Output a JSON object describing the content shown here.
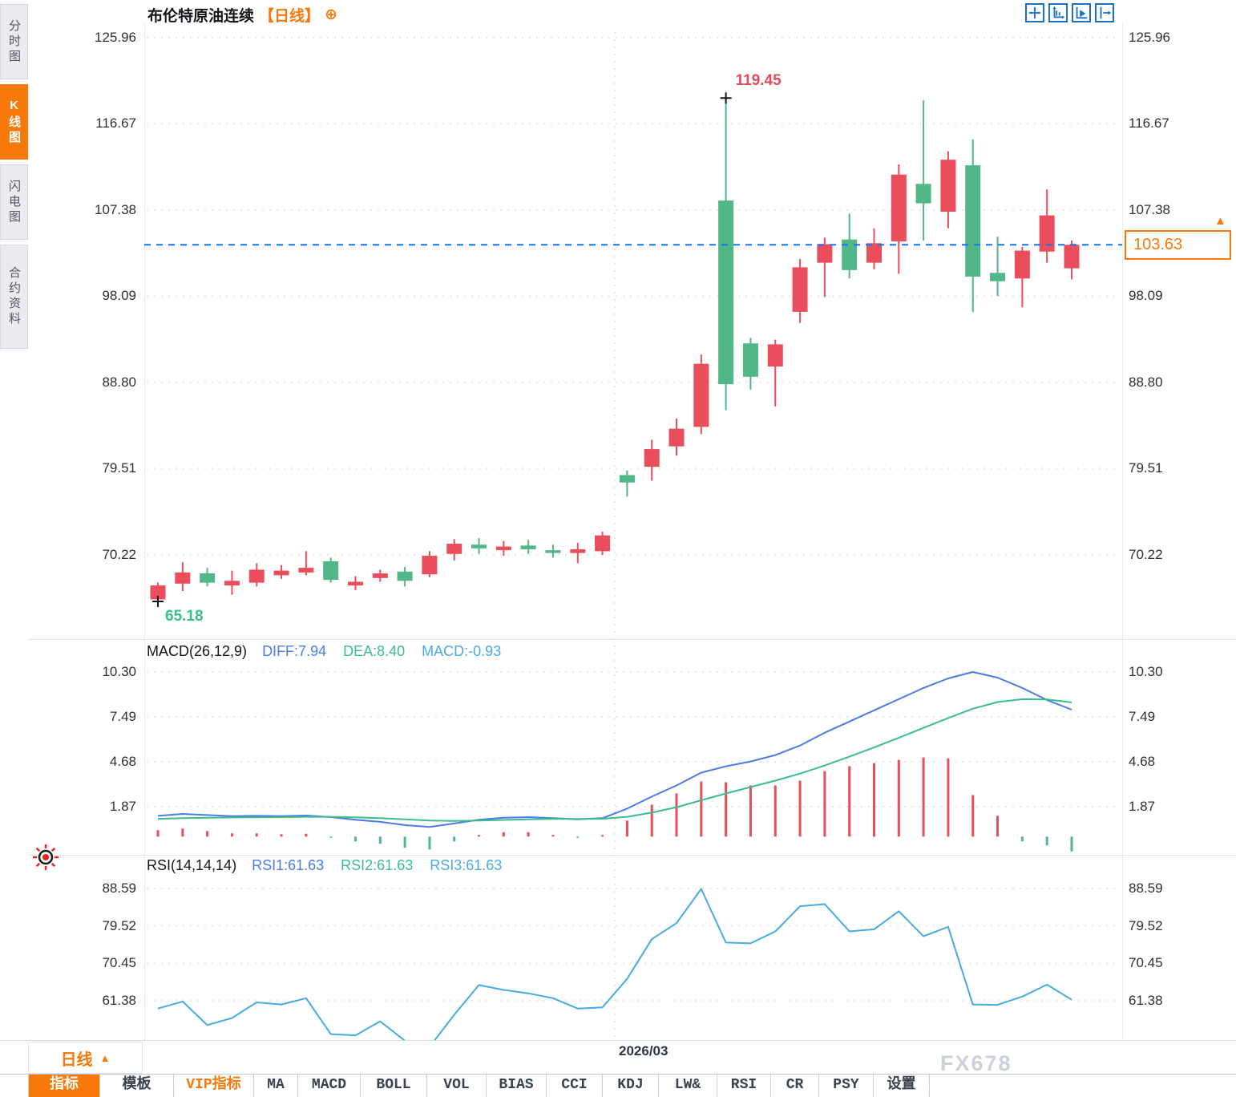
{
  "header": {
    "title": "布伦特原油连续",
    "period_tag": "【日线】",
    "add_icon": "⊕",
    "toolbar_icons": [
      "crosshair-icon",
      "axis-scale-icon",
      "play-axis-icon",
      "pan-right-icon"
    ]
  },
  "sidebar": {
    "tabs": [
      {
        "key": "time-chart",
        "label": "分时图",
        "active": false
      },
      {
        "key": "kline-chart",
        "label": "K线图",
        "active": true
      },
      {
        "key": "lightning-chart",
        "label": "闪电图",
        "active": false
      },
      {
        "key": "contract-info",
        "label": "合约资料",
        "active": false
      }
    ]
  },
  "markers": {
    "high_label": "119.45",
    "low_label": "65.18",
    "price_tag": "103.63",
    "tag_arrow": "▲"
  },
  "macd_header": {
    "name": "MACD(26,12,9)",
    "diff": "DIFF:7.94",
    "dea": "DEA:8.40",
    "macd": "MACD:-0.93"
  },
  "rsi_header": {
    "name": "RSI(14,14,14)",
    "rsi1": "RSI1:61.63",
    "rsi2": "RSI2:61.63",
    "rsi3": "RSI3:61.63"
  },
  "bottom": {
    "timeframe_button": {
      "label": "日线",
      "arrow": "▲"
    },
    "x_axis_label": "2026/03",
    "watermark": "FX678",
    "toolbar": [
      {
        "key": "indicator",
        "label": "指标",
        "variant": "active"
      },
      {
        "key": "template",
        "label": "模板",
        "variant": "normal"
      },
      {
        "key": "vip-indicator",
        "label": "VIP指标",
        "variant": "vip"
      },
      {
        "key": "ma",
        "label": "MA",
        "variant": "normal"
      },
      {
        "key": "macd",
        "label": "MACD",
        "variant": "normal"
      },
      {
        "key": "boll",
        "label": "BOLL",
        "variant": "normal"
      },
      {
        "key": "vol",
        "label": "VOL",
        "variant": "normal"
      },
      {
        "key": "bias",
        "label": "BIAS",
        "variant": "normal"
      },
      {
        "key": "cci",
        "label": "CCI",
        "variant": "normal"
      },
      {
        "key": "kdj",
        "label": "KDJ",
        "variant": "normal"
      },
      {
        "key": "lwr",
        "label": "LW&",
        "variant": "normal"
      },
      {
        "key": "rsi",
        "label": "RSI",
        "variant": "normal"
      },
      {
        "key": "cr",
        "label": "CR",
        "variant": "normal"
      },
      {
        "key": "psy",
        "label": "PSY",
        "variant": "normal"
      },
      {
        "key": "settings",
        "label": "设置",
        "variant": "normal"
      }
    ]
  },
  "colors": {
    "up": "#ea4d5c",
    "down": "#52b788",
    "diff_line": "#4b7be5",
    "dea_line": "#3bbd8d",
    "rsi_line": "#47abdf",
    "dashed_price_line": "#1777e6",
    "accent_orange": "#f8790a",
    "icon_blue": "#1a6fc4",
    "grid": "#e7e7ec",
    "watermark": "#ccd1da"
  },
  "chart_data": {
    "type": "candlestick",
    "title": "布伦特原油连续",
    "period": "日线",
    "x_axis_label": "2026/03",
    "main_panel": {
      "y_ticks": [
        125.96,
        116.67,
        107.38,
        98.09,
        88.8,
        79.51,
        70.22
      ],
      "high_marker": 119.45,
      "low_marker": 65.18,
      "last_price": 103.63,
      "candles_ohlc": [
        [
          65.4,
          67.2,
          65.18,
          66.9
        ],
        [
          67.1,
          69.4,
          66.3,
          68.3
        ],
        [
          68.2,
          68.8,
          66.8,
          67.2
        ],
        [
          66.9,
          68.5,
          65.9,
          67.4
        ],
        [
          67.2,
          69.3,
          66.8,
          68.6
        ],
        [
          68.0,
          69.1,
          67.6,
          68.5
        ],
        [
          68.3,
          70.6,
          68.0,
          68.8
        ],
        [
          69.5,
          69.9,
          67.2,
          67.5
        ],
        [
          66.9,
          67.9,
          66.4,
          67.3
        ],
        [
          67.7,
          68.6,
          67.3,
          68.2
        ],
        [
          68.4,
          68.9,
          66.8,
          67.4
        ],
        [
          68.1,
          70.6,
          67.8,
          70.1
        ],
        [
          70.3,
          71.9,
          69.6,
          71.4
        ],
        [
          71.3,
          72.0,
          70.3,
          70.9
        ],
        [
          70.7,
          71.7,
          70.1,
          71.1
        ],
        [
          71.2,
          71.8,
          70.3,
          70.8
        ],
        [
          70.7,
          71.3,
          69.9,
          70.4
        ],
        [
          70.4,
          71.5,
          69.3,
          70.8
        ],
        [
          70.6,
          72.7,
          70.2,
          72.3
        ],
        [
          78.8,
          79.3,
          76.5,
          78.0
        ],
        [
          79.7,
          82.6,
          78.2,
          81.6
        ],
        [
          81.9,
          84.9,
          80.9,
          83.8
        ],
        [
          84.0,
          91.8,
          83.2,
          90.8
        ],
        [
          108.4,
          119.45,
          85.8,
          88.6
        ],
        [
          93.0,
          93.6,
          88.0,
          89.4
        ],
        [
          90.5,
          93.4,
          86.2,
          92.9
        ],
        [
          96.4,
          102.1,
          95.2,
          101.2
        ],
        [
          101.7,
          104.4,
          98.0,
          103.7
        ],
        [
          104.2,
          107.0,
          100.0,
          100.9
        ],
        [
          101.7,
          105.4,
          101.0,
          103.8
        ],
        [
          104.0,
          112.3,
          100.5,
          111.2
        ],
        [
          110.2,
          119.2,
          104.1,
          108.1
        ],
        [
          107.2,
          113.7,
          105.4,
          112.8
        ],
        [
          112.2,
          115.0,
          96.4,
          100.2
        ],
        [
          100.6,
          104.5,
          98.1,
          99.7
        ],
        [
          100.0,
          103.4,
          96.9,
          103.0
        ],
        [
          102.9,
          109.6,
          101.7,
          106.8
        ],
        [
          101.1,
          104.1,
          99.9,
          103.63
        ]
      ]
    },
    "macd_panel": {
      "name": "MACD(26,12,9)",
      "diff": 7.94,
      "dea": 8.4,
      "macd": -0.93,
      "y_ticks": [
        10.3,
        7.49,
        4.68,
        1.87
      ],
      "diff_series": [
        1.3,
        1.42,
        1.35,
        1.28,
        1.3,
        1.28,
        1.32,
        1.22,
        1.05,
        0.92,
        0.72,
        0.6,
        0.82,
        1.05,
        1.18,
        1.22,
        1.15,
        1.08,
        1.15,
        1.75,
        2.5,
        3.2,
        4.0,
        4.4,
        4.7,
        5.1,
        5.7,
        6.5,
        7.2,
        7.9,
        8.6,
        9.3,
        9.9,
        10.3,
        9.95,
        9.3,
        8.55,
        7.94
      ],
      "dea_series": [
        1.1,
        1.15,
        1.18,
        1.2,
        1.21,
        1.22,
        1.24,
        1.24,
        1.21,
        1.16,
        1.08,
        1.0,
        0.98,
        1.0,
        1.04,
        1.08,
        1.1,
        1.1,
        1.11,
        1.24,
        1.5,
        1.84,
        2.27,
        2.7,
        3.1,
        3.5,
        3.94,
        4.45,
        5.0,
        5.58,
        6.18,
        6.8,
        7.42,
        8.0,
        8.42,
        8.6,
        8.58,
        8.4
      ],
      "hist_series": [
        0.4,
        0.5,
        0.35,
        0.2,
        0.2,
        0.15,
        0.18,
        -0.05,
        -0.3,
        -0.45,
        -0.7,
        -0.8,
        -0.3,
        0.1,
        0.28,
        0.28,
        0.1,
        -0.05,
        0.1,
        1.0,
        2.0,
        2.7,
        3.45,
        3.4,
        3.2,
        3.2,
        3.5,
        4.1,
        4.4,
        4.6,
        4.8,
        4.95,
        4.9,
        2.6,
        1.3,
        -0.3,
        -0.55,
        -0.93
      ]
    },
    "rsi_panel": {
      "name": "RSI(14,14,14)",
      "rsi1": 61.63,
      "rsi2": 61.63,
      "rsi3": 61.63,
      "y_ticks": [
        88.59,
        79.52,
        70.45,
        61.38
      ],
      "series": [
        59.5,
        61.2,
        55.5,
        57.2,
        61.0,
        60.5,
        62.0,
        53.3,
        53.0,
        56.4,
        51.7,
        50.2,
        58.0,
        65.2,
        64.0,
        63.2,
        62.0,
        59.5,
        59.8,
        66.7,
        76.3,
        80.2,
        88.5,
        75.5,
        75.3,
        78.2,
        84.3,
        84.8,
        78.2,
        78.7,
        83.1,
        77.0,
        79.3,
        60.5,
        60.4,
        62.4,
        65.3,
        61.63
      ]
    }
  }
}
